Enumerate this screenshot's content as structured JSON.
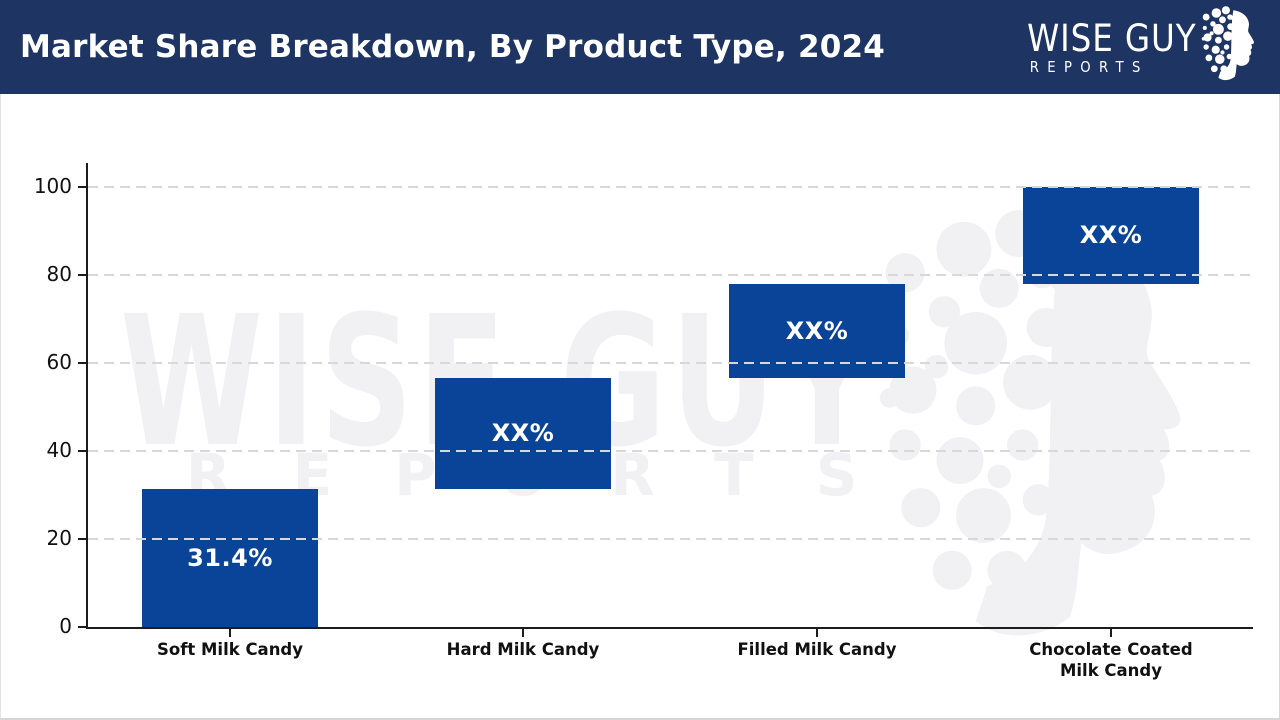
{
  "header": {
    "title": "Market Share Breakdown, By Product Type, 2024",
    "logo": {
      "line1": "WISE GUY",
      "line2": "REPORTS"
    }
  },
  "watermark": {
    "line1": "WISE GUY",
    "line2": "REPORTS"
  },
  "chart_data": {
    "type": "bar",
    "subtype": "waterfall",
    "title": "Market Share Breakdown, By Product Type, 2024",
    "categories": [
      "Soft Milk Candy",
      "Hard Milk Candy",
      "Filled Milk Candy",
      "Chocolate Coated Milk Candy"
    ],
    "bars": [
      {
        "category": "Soft Milk Candy",
        "start": 0,
        "end": 31.4,
        "label": "31.4%"
      },
      {
        "category": "Hard Milk Candy",
        "start": 31.4,
        "end": 56.6,
        "label": "XX%"
      },
      {
        "category": "Filled Milk Candy",
        "start": 56.6,
        "end": 77.9,
        "label": "XX%"
      },
      {
        "category": "Chocolate Coated Milk Candy",
        "start": 77.9,
        "end": 100.0,
        "label": "XX%"
      }
    ],
    "y_axis": {
      "ticks": [
        0,
        20,
        40,
        60,
        80,
        100
      ],
      "range": [
        0,
        105.6
      ]
    },
    "xlabel": "",
    "ylabel": "",
    "grid": "horizontal-dashed",
    "legend": "none"
  },
  "colors": {
    "header_bg": "#1e3462",
    "bar": "#0a4499",
    "bar_label": "#ffffff",
    "axis": "#1c1c1c",
    "grid": "#d8d8d8",
    "tick_label": "#111111",
    "watermark": "#f1f1f3",
    "page_bg": "#ffffff"
  }
}
